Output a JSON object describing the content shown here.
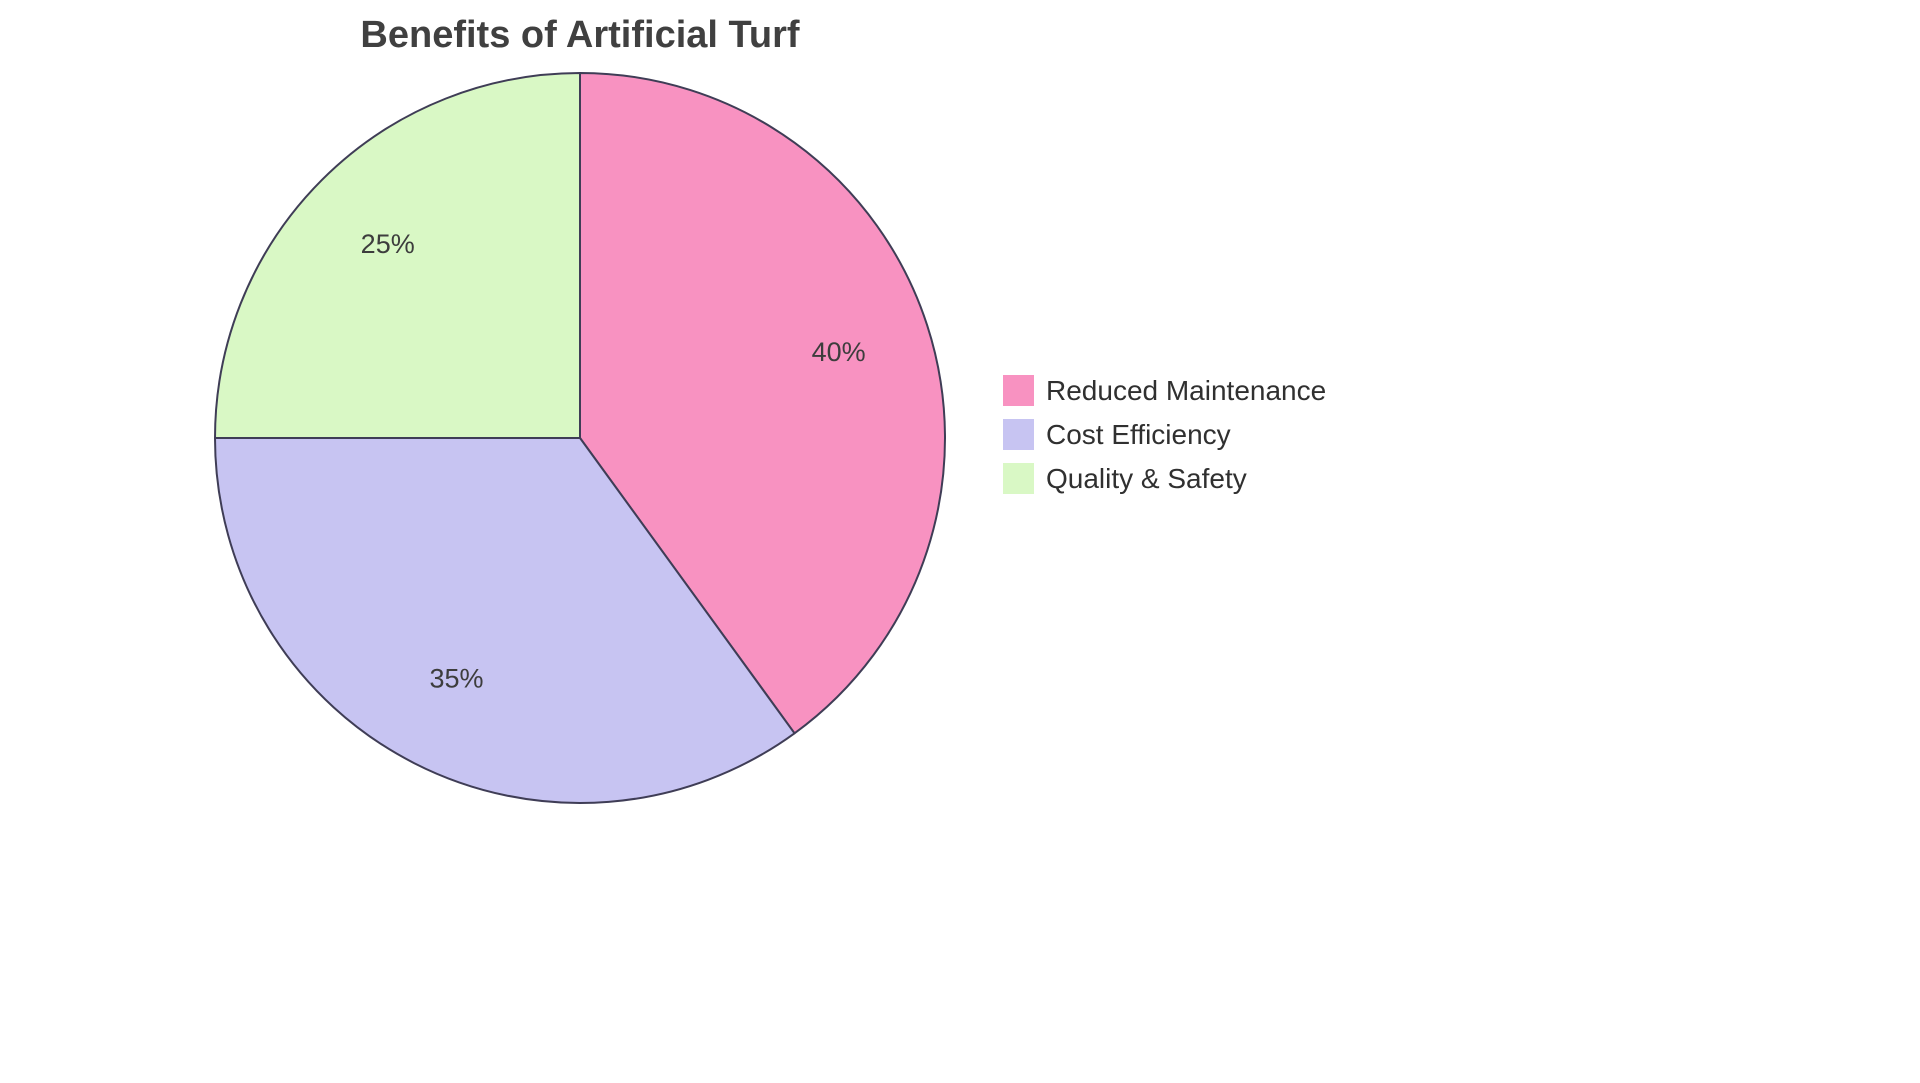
{
  "chart_data": {
    "type": "pie",
    "title": "Benefits of Artificial Turf",
    "series": [
      {
        "label": "Reduced Maintenance",
        "value": 40,
        "percent_label": "40%",
        "color": "#F892C1"
      },
      {
        "label": "Cost Efficiency",
        "value": 35,
        "percent_label": "35%",
        "color": "#C7C4F2"
      },
      {
        "label": "Quality & Safety",
        "value": 25,
        "percent_label": "25%",
        "color": "#D9F8C5"
      }
    ],
    "start_angle_deg": 0,
    "direction": "clockwise",
    "legend_position": "right",
    "stroke_color": "#3f3d56",
    "label_color": "#3d3d3d",
    "background": "#ffffff"
  },
  "layout_hints": {
    "grid": "off",
    "pie_center": "left-of-center",
    "labels": "inside-percent"
  }
}
